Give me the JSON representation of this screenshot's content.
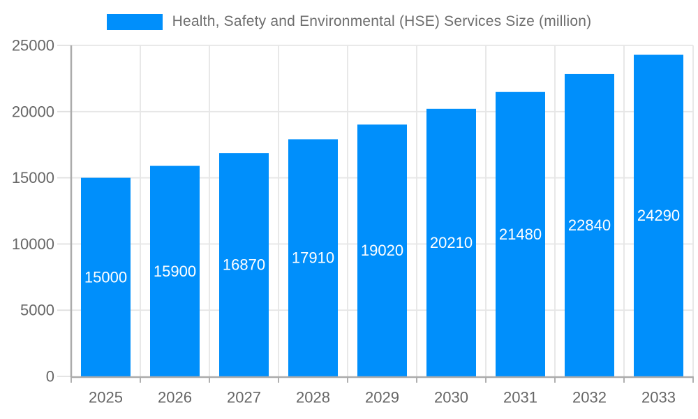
{
  "chart_data": {
    "type": "bar",
    "title": "Health, Safety and Environmental (HSE) Services Size (million)",
    "categories": [
      "2025",
      "2026",
      "2027",
      "2028",
      "2029",
      "2030",
      "2031",
      "2032",
      "2033"
    ],
    "series": [
      {
        "name": "Health, Safety and Environmental (HSE) Services Size (million)",
        "values": [
          15000,
          15900,
          16870,
          17910,
          19020,
          20210,
          21480,
          22840,
          24290
        ]
      }
    ],
    "xlabel": "",
    "ylabel": "",
    "ylim": [
      0,
      25000
    ],
    "yticks": [
      0,
      5000,
      10000,
      15000,
      20000,
      25000
    ],
    "grid": true,
    "legend_position": "top",
    "bar_color": "#008FFB",
    "data_label_color": "#ffffff",
    "colors": {
      "grid_line": "#e6e6e6",
      "axis_line": "#ababab",
      "x_tick": "#b0b0b0",
      "y_tick": "#e0e0e0",
      "tick_label": "#666666",
      "legend_label": "#6e6e6e",
      "background": "#ffffff"
    }
  }
}
